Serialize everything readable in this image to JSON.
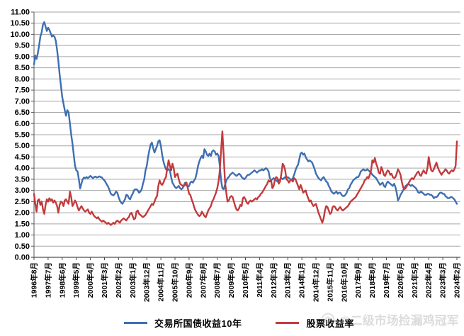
{
  "watermark": {
    "text": "@二级市场捡漏鸡冠军"
  },
  "chart_data": {
    "type": "line",
    "title": "",
    "grid": true,
    "legend_position": "bottom",
    "ylim": [
      0,
      11
    ],
    "y_tick_step": 0.5,
    "y_ticks": [
      "0.00",
      "0.50",
      "1.00",
      "1.50",
      "2.00",
      "2.50",
      "3.00",
      "3.50",
      "4.00",
      "4.50",
      "5.00",
      "5.50",
      "6.00",
      "6.50",
      "7.00",
      "7.50",
      "8.00",
      "8.50",
      "9.00",
      "9.50",
      "10.00",
      "10.50",
      "11.00"
    ],
    "x_labels": [
      "1996年8月",
      "1997年7月",
      "1998年6月",
      "1999年5月",
      "2000年4月",
      "2001年3月",
      "2002年2月",
      "2003年1月",
      "2003年12月",
      "2004年11月",
      "2005年10月",
      "2006年9月",
      "2007年8月",
      "2008年7月",
      "2009年6月",
      "2010年5月",
      "2011年4月",
      "2012年3月",
      "2013年2月",
      "2014年1月",
      "2014年12月",
      "2015年11月",
      "2016年10月",
      "2017年9月",
      "2018年8月",
      "2019年7月",
      "2020年6月",
      "2021年5月",
      "2022年4月",
      "2023年3月",
      "2024年2月"
    ],
    "months_per_label": 11,
    "colors": {
      "grid": "#A6A6A6",
      "axis": "#595959",
      "text": "#000000"
    },
    "series": [
      {
        "name": "交易所国债收益10年",
        "color": "#3E6FB2",
        "values": [
          8.65,
          9.05,
          8.9,
          9.15,
          9.5,
          9.9,
          10.1,
          10.45,
          10.55,
          10.35,
          10.15,
          10.3,
          10.2,
          10.05,
          9.9,
          9.95,
          9.9,
          9.7,
          9.3,
          8.8,
          8.2,
          7.7,
          7.2,
          6.9,
          6.6,
          6.35,
          6.6,
          6.5,
          6.0,
          5.5,
          5.1,
          4.6,
          4.1,
          3.9,
          3.85,
          3.5,
          3.08,
          3.3,
          3.5,
          3.58,
          3.55,
          3.6,
          3.55,
          3.6,
          3.65,
          3.6,
          3.55,
          3.6,
          3.62,
          3.58,
          3.6,
          3.63,
          3.6,
          3.58,
          3.5,
          3.45,
          3.35,
          3.25,
          3.15,
          3.0,
          2.85,
          2.8,
          2.78,
          2.85,
          2.95,
          2.9,
          2.7,
          2.55,
          2.45,
          2.4,
          2.5,
          2.6,
          2.8,
          2.78,
          2.65,
          2.6,
          2.75,
          2.85,
          3.0,
          3.05,
          3.05,
          3.0,
          2.9,
          2.95,
          3.05,
          3.3,
          3.5,
          3.9,
          4.1,
          4.5,
          4.8,
          5.05,
          5.15,
          4.9,
          4.7,
          4.85,
          5.0,
          5.2,
          5.25,
          5.0,
          4.6,
          4.3,
          4.1,
          3.95,
          3.9,
          3.95,
          3.9,
          3.6,
          3.35,
          3.25,
          3.15,
          3.1,
          3.15,
          3.2,
          3.1,
          3.05,
          3.1,
          3.25,
          3.35,
          3.25,
          3.15,
          3.2,
          3.35,
          3.4,
          3.35,
          3.45,
          3.55,
          3.8,
          4.1,
          4.3,
          4.45,
          4.55,
          4.45,
          4.85,
          4.75,
          4.6,
          4.55,
          4.65,
          4.55,
          4.75,
          4.8,
          4.75,
          4.6,
          4.65,
          4.55,
          4.1,
          3.45,
          3.1,
          3.05,
          3.25,
          3.45,
          3.55,
          3.6,
          3.7,
          3.75,
          3.8,
          3.75,
          3.7,
          3.65,
          3.7,
          3.75,
          3.7,
          3.6,
          3.55,
          3.5,
          3.55,
          3.65,
          3.7,
          3.7,
          3.75,
          3.8,
          3.85,
          3.9,
          3.85,
          3.8,
          3.85,
          3.9,
          3.9,
          3.95,
          3.9,
          3.95,
          4.0,
          3.95,
          3.85,
          3.55,
          3.45,
          3.5,
          3.55,
          3.5,
          3.45,
          3.4,
          3.45,
          3.5,
          3.55,
          3.5,
          3.55,
          3.6,
          3.55,
          3.6,
          3.55,
          3.5,
          3.45,
          3.55,
          3.7,
          3.9,
          4.05,
          4.15,
          4.4,
          4.65,
          4.7,
          4.6,
          4.65,
          4.5,
          4.4,
          4.3,
          4.35,
          4.3,
          4.25,
          4.1,
          3.95,
          3.75,
          3.65,
          3.55,
          3.5,
          3.45,
          3.55,
          3.6,
          3.5,
          3.4,
          3.35,
          3.2,
          3.1,
          2.95,
          2.9,
          2.85,
          2.9,
          2.95,
          2.85,
          2.9,
          2.9,
          2.8,
          2.75,
          2.75,
          2.8,
          2.9,
          3.05,
          3.1,
          3.25,
          3.35,
          3.45,
          3.5,
          3.55,
          3.6,
          3.6,
          3.7,
          3.85,
          3.9,
          3.95,
          3.9,
          3.9,
          3.95,
          3.9,
          3.85,
          3.8,
          3.7,
          3.65,
          3.6,
          3.55,
          3.45,
          3.35,
          3.25,
          3.3,
          3.35,
          3.2,
          3.15,
          3.3,
          3.4,
          3.35,
          3.3,
          3.25,
          3.2,
          3.3,
          3.15,
          2.9,
          2.55,
          2.65,
          2.8,
          2.9,
          3.0,
          3.1,
          3.2,
          3.25,
          3.3,
          3.25,
          3.2,
          3.25,
          3.2,
          3.15,
          3.1,
          3.0,
          2.9,
          2.9,
          2.95,
          2.9,
          2.85,
          2.8,
          2.8,
          2.85,
          2.85,
          2.8,
          2.8,
          2.75,
          2.65,
          2.7,
          2.7,
          2.75,
          2.85,
          2.9,
          2.9,
          2.85,
          2.85,
          2.75,
          2.7,
          2.65,
          2.65,
          2.7,
          2.7,
          2.65,
          2.6,
          2.5,
          2.4
        ]
      },
      {
        "name": "股票收益率",
        "color": "#C23A3C",
        "values": [
          2.85,
          2.4,
          2.05,
          2.55,
          2.6,
          2.35,
          2.5,
          2.15,
          1.95,
          2.35,
          2.6,
          2.5,
          2.65,
          2.55,
          2.6,
          2.45,
          2.55,
          2.45,
          2.3,
          2.0,
          2.35,
          2.5,
          2.45,
          2.3,
          2.55,
          2.6,
          2.5,
          2.4,
          2.95,
          2.7,
          2.3,
          2.4,
          2.55,
          2.45,
          2.25,
          2.1,
          2.2,
          2.3,
          2.2,
          2.1,
          2.05,
          2.1,
          2.15,
          2.0,
          1.95,
          2.05,
          1.95,
          1.85,
          1.8,
          1.75,
          1.8,
          1.7,
          1.65,
          1.6,
          1.65,
          1.6,
          1.55,
          1.5,
          1.55,
          1.5,
          1.45,
          1.5,
          1.55,
          1.5,
          1.6,
          1.65,
          1.6,
          1.55,
          1.65,
          1.7,
          1.75,
          1.7,
          1.65,
          1.75,
          1.8,
          1.95,
          2.0,
          1.85,
          1.7,
          1.75,
          2.05,
          2.1,
          1.95,
          1.9,
          1.85,
          1.8,
          1.85,
          1.9,
          2.0,
          2.1,
          2.2,
          2.3,
          2.4,
          2.35,
          2.5,
          2.65,
          2.75,
          3.2,
          3.45,
          3.3,
          3.25,
          3.35,
          3.5,
          3.6,
          4.0,
          4.35,
          4.1,
          3.9,
          4.2,
          4.0,
          3.6,
          3.7,
          3.75,
          3.5,
          3.3,
          3.25,
          3.2,
          3.2,
          3.25,
          3.35,
          3.1,
          2.85,
          2.8,
          2.6,
          2.45,
          2.25,
          2.1,
          2.0,
          1.9,
          1.85,
          1.9,
          2.05,
          1.95,
          1.85,
          1.8,
          1.95,
          2.1,
          2.2,
          2.3,
          2.5,
          2.6,
          2.75,
          2.9,
          3.1,
          3.4,
          3.9,
          4.8,
          5.65,
          4.6,
          3.4,
          2.9,
          2.5,
          2.55,
          2.7,
          2.75,
          2.7,
          2.5,
          2.3,
          2.15,
          2.1,
          2.2,
          2.35,
          2.3,
          2.65,
          2.7,
          2.6,
          2.45,
          2.4,
          2.5,
          2.55,
          2.5,
          2.55,
          2.6,
          2.65,
          2.6,
          2.7,
          2.75,
          2.85,
          2.9,
          3.0,
          3.1,
          3.2,
          3.3,
          3.45,
          3.4,
          3.45,
          3.1,
          3.2,
          3.5,
          3.6,
          3.55,
          3.3,
          3.4,
          3.75,
          4.2,
          4.1,
          3.9,
          3.5,
          3.45,
          3.35,
          3.45,
          3.5,
          3.4,
          3.55,
          3.5,
          3.35,
          3.2,
          3.05,
          3.25,
          3.1,
          2.9,
          2.95,
          3.0,
          2.8,
          2.65,
          2.5,
          2.55,
          2.4,
          2.3,
          2.35,
          2.4,
          2.2,
          2.0,
          1.85,
          1.7,
          1.55,
          1.75,
          2.1,
          2.3,
          2.25,
          2.1,
          1.95,
          2.0,
          2.25,
          2.3,
          2.25,
          2.15,
          2.1,
          2.2,
          2.25,
          2.15,
          2.1,
          2.15,
          2.2,
          2.25,
          2.3,
          2.4,
          2.5,
          2.55,
          2.6,
          2.65,
          2.7,
          2.8,
          2.9,
          3.0,
          3.1,
          3.2,
          3.3,
          3.45,
          3.5,
          3.6,
          3.55,
          3.7,
          3.9,
          4.35,
          4.25,
          4.45,
          4.2,
          4.05,
          3.8,
          3.75,
          4.05,
          3.9,
          3.7,
          3.65,
          3.8,
          3.9,
          3.85,
          3.7,
          3.75,
          3.6,
          3.55,
          3.6,
          3.75,
          3.95,
          3.85,
          3.7,
          3.4,
          3.15,
          3.05,
          3.1,
          3.2,
          3.3,
          3.4,
          3.5,
          3.55,
          3.5,
          3.6,
          3.7,
          3.8,
          3.85,
          3.7,
          3.65,
          3.8,
          3.9,
          3.8,
          3.75,
          4.0,
          4.5,
          4.15,
          3.9,
          3.85,
          3.95,
          4.1,
          4.25,
          4.05,
          3.9,
          3.8,
          3.7,
          3.8,
          3.85,
          3.95,
          3.9,
          3.8,
          3.75,
          3.85,
          3.9,
          3.85,
          3.95,
          4.1,
          5.2
        ]
      }
    ]
  }
}
